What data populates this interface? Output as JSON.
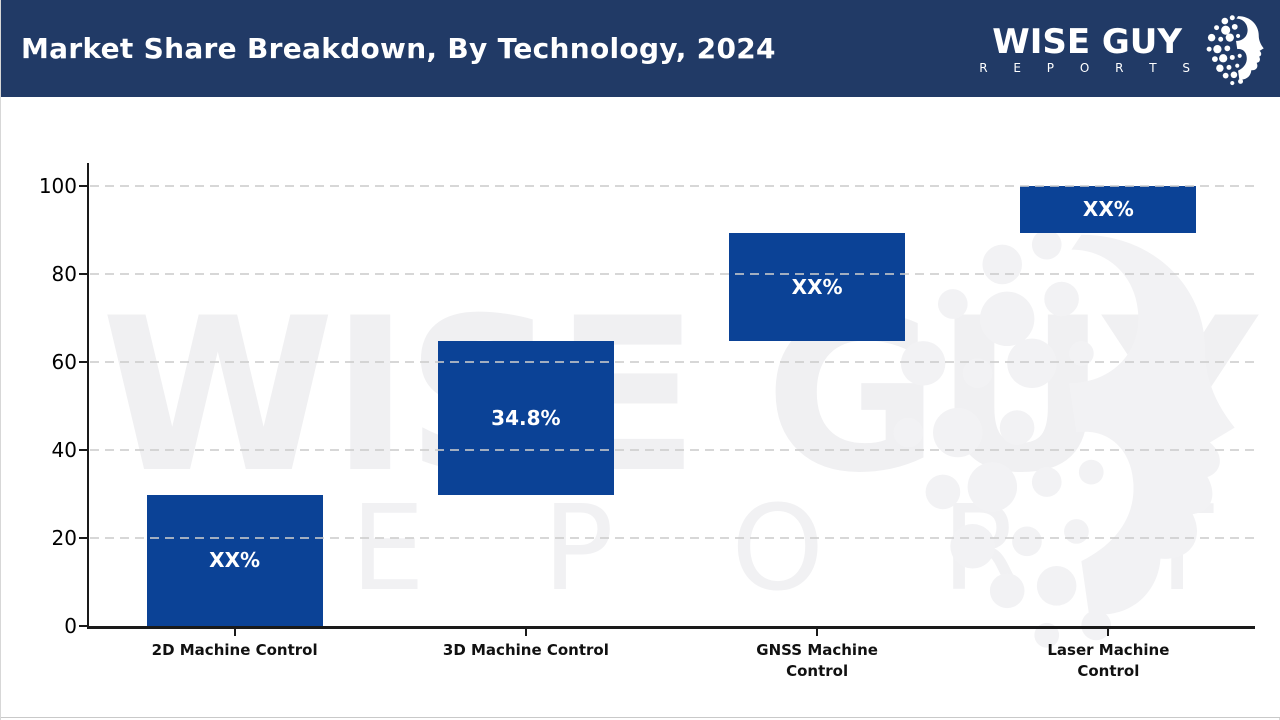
{
  "header": {
    "title": "Market Share Breakdown, By Technology, 2024",
    "logo": {
      "wordmark": "WISE GUY",
      "subtext": "R E P O R T S"
    }
  },
  "watermark": {
    "wordmark": "WISE GUY",
    "subtext": "R E P O R T S"
  },
  "chart_data": {
    "type": "bar",
    "subtype": "waterfall",
    "title": "Market Share Breakdown, By Technology, 2024",
    "categories": [
      "2D Machine Control",
      "3D Machine Control",
      "GNSS Machine Control",
      "Laser Machine Control"
    ],
    "xlabel_lines": [
      [
        "2D Machine Control"
      ],
      [
        "3D Machine Control"
      ],
      [
        "GNSS Machine",
        "Control"
      ],
      [
        "Laser Machine",
        "Control"
      ]
    ],
    "segments": [
      {
        "category": "2D Machine Control",
        "start": 0,
        "end": 29.8,
        "label": "XX%"
      },
      {
        "category": "3D Machine Control",
        "start": 29.8,
        "end": 64.6,
        "label": "34.8%"
      },
      {
        "category": "GNSS Machine Control",
        "start": 64.6,
        "end": 89.3,
        "label": "XX%"
      },
      {
        "category": "Laser Machine Control",
        "start": 89.3,
        "end": 100,
        "label": "XX%"
      }
    ],
    "yticks": [
      0,
      20,
      40,
      60,
      80,
      100
    ],
    "ylim": [
      0,
      104.6
    ],
    "xlabel": "",
    "ylabel": "",
    "legend": "none",
    "grid": "horizontal-dashed",
    "bar_color": "#0B4296",
    "bar_label_color": "#FFFFFF"
  },
  "colors": {
    "header_bg": "#213A66",
    "bar": "#0B4296",
    "gridline": "#D9D9D9",
    "gridline_overlay": "rgba(204,204,204,0.78)",
    "axis": "#1A1A1A",
    "watermark": "#F0F0F2"
  }
}
